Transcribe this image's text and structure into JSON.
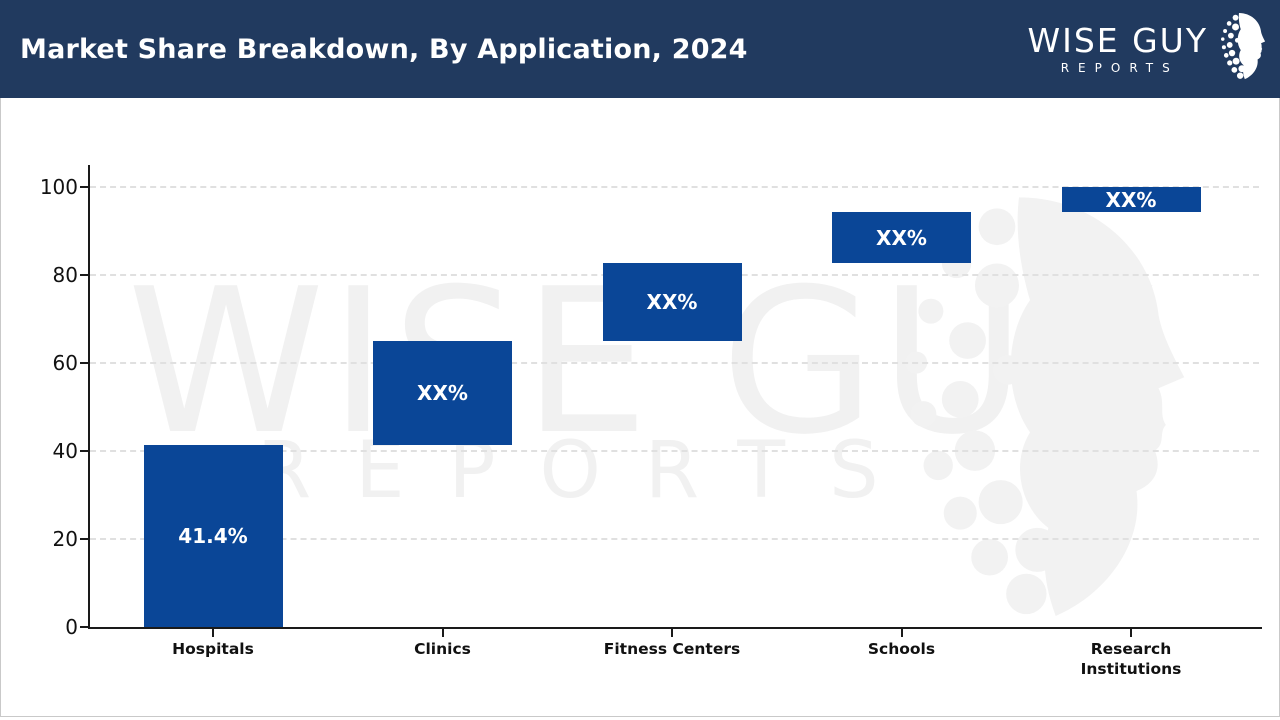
{
  "header": {
    "title": "Market Share Breakdown, By Application, 2024",
    "logo": {
      "name": "WISE GUY",
      "sub": "REPORTS"
    }
  },
  "watermark": {
    "line1": "WISE GUY",
    "line2": "REPORTS"
  },
  "chart_data": {
    "type": "bar",
    "subtype": "waterfall",
    "title": "Market Share Breakdown, By Application, 2024",
    "categories": [
      "Hospitals",
      "Clinics",
      "Fitness Centers",
      "Schools",
      "Research Institutions"
    ],
    "bar_labels": [
      "41.4%",
      "XX%",
      "XX%",
      "XX%",
      "XX%"
    ],
    "values": [
      41.4,
      23.6,
      17.7,
      11.6,
      5.7
    ],
    "segments": [
      {
        "category": "Hospitals",
        "start": 0,
        "end": 41.4,
        "label": "41.4%"
      },
      {
        "category": "Clinics",
        "start": 41.4,
        "end": 65.0,
        "label": "XX%"
      },
      {
        "category": "Fitness Centers",
        "start": 65.0,
        "end": 82.7,
        "label": "XX%"
      },
      {
        "category": "Schools",
        "start": 82.7,
        "end": 94.3,
        "label": "XX%"
      },
      {
        "category": "Research Institutions",
        "start": 94.3,
        "end": 100.0,
        "label": "XX%"
      }
    ],
    "xlabel": "",
    "ylabel": "",
    "ylim": [
      0,
      100
    ],
    "yticks": [
      0,
      20,
      40,
      60,
      80,
      100
    ],
    "grid": "horizontal-dashed",
    "legend": "none",
    "bar_color": "#0a4697",
    "bar_label_color": "#ffffff"
  },
  "colors": {
    "header_bg": "#213a5f",
    "bar": "#0a4697",
    "watermark": "#f1f1f1",
    "gridline": "#e0e0e0",
    "axis": "#1a1a1a",
    "border": "#c9c9c9"
  }
}
